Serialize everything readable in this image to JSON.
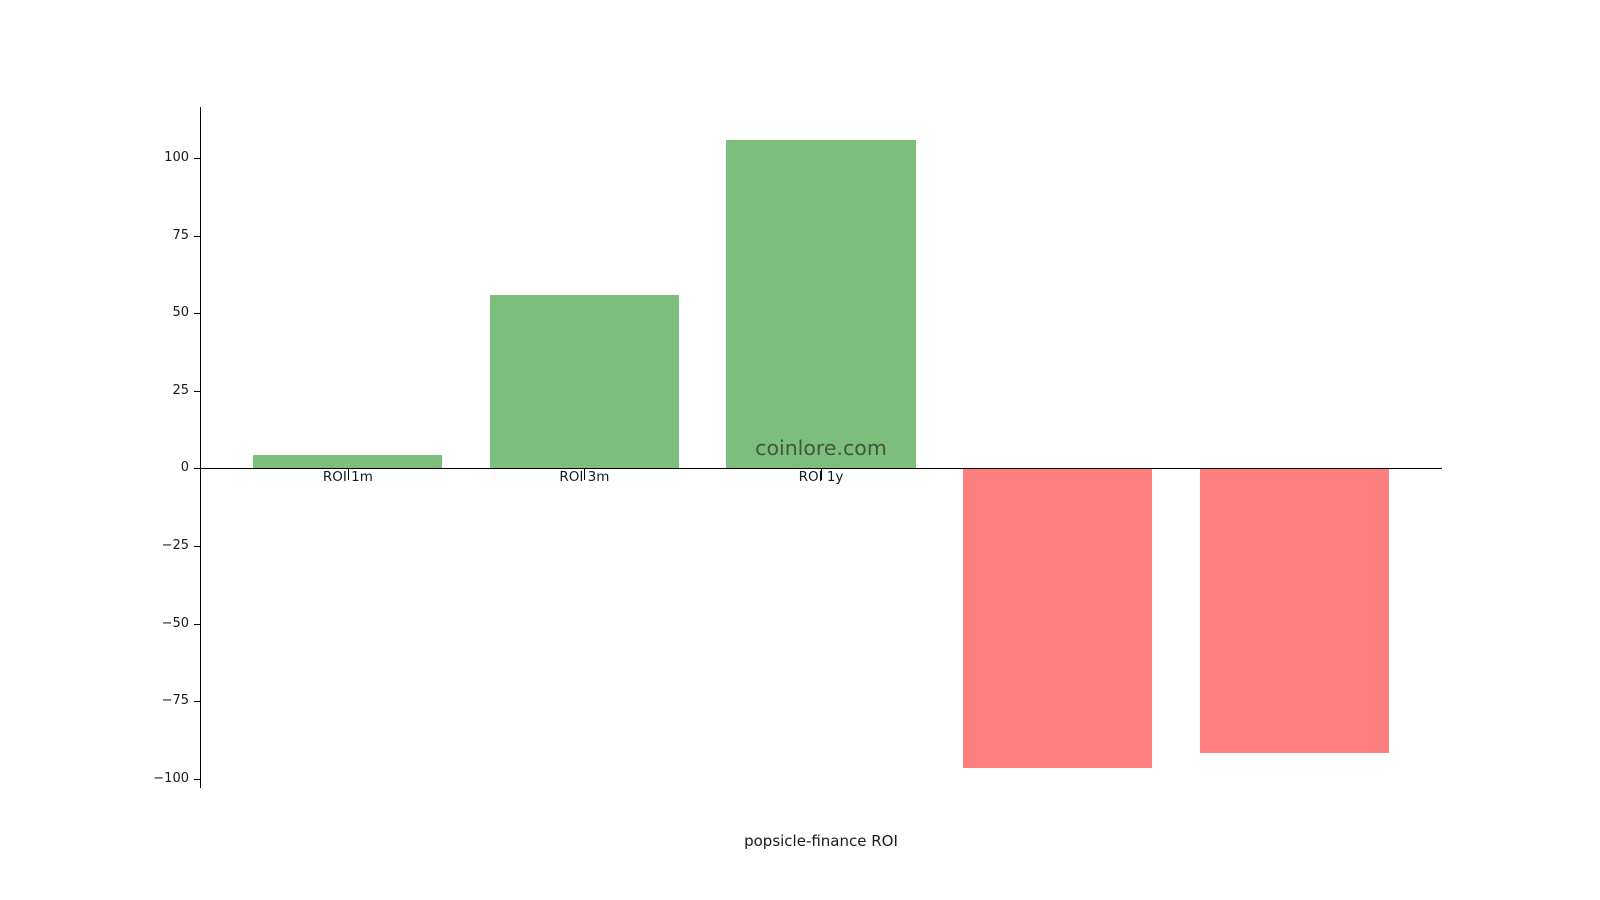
{
  "page": {
    "background_color": "#ffffff",
    "text_color": "#1a1a1a",
    "axis_color": "#000000"
  },
  "watermark": {
    "text": "coinlore.com"
  },
  "chart_data": {
    "type": "bar",
    "title": "popsicle-finance ROI",
    "watermark": "coinlore.com",
    "categories": [
      "ROI 1m",
      "ROI 3m",
      "ROI 1y",
      "",
      ""
    ],
    "values": [
      4.2,
      56,
      106,
      -96.6,
      -91.8
    ],
    "positive_color": "#7cbf7c",
    "negative_color": "#fe7f7f",
    "xlabel": "",
    "ylabel": "",
    "yticks": [
      -100,
      -75,
      -50,
      -25,
      0,
      25,
      50,
      75,
      100
    ],
    "ylim": [
      -103,
      116.5
    ],
    "xlim": [
      -0.625,
      4.625
    ],
    "bar_width": 0.8,
    "grid": false,
    "legend": null
  }
}
